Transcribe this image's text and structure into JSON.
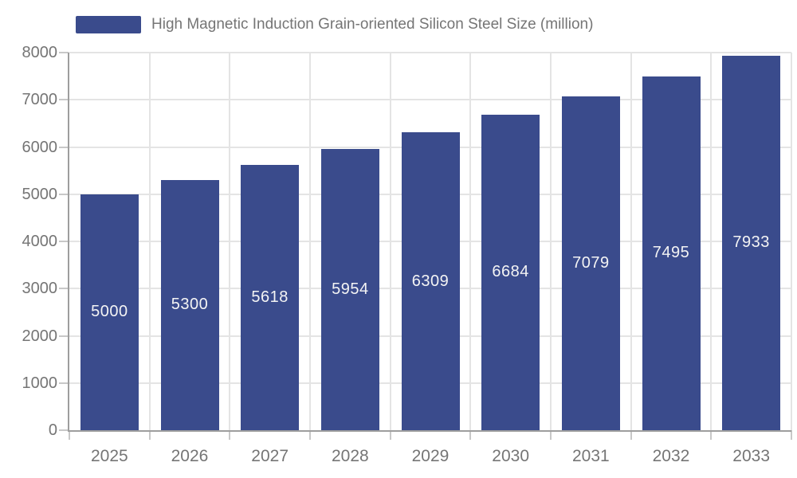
{
  "legend": {
    "label": "High Magnetic Induction Grain-oriented Silicon Steel Size (million)"
  },
  "chart_data": {
    "type": "bar",
    "title": "",
    "categories": [
      "2025",
      "2026",
      "2027",
      "2028",
      "2029",
      "2030",
      "2031",
      "2032",
      "2033"
    ],
    "series": [
      {
        "name": "High Magnetic Induction Grain-oriented Silicon Steel Size (million)",
        "values": [
          5000,
          5300,
          5618,
          5954,
          6309,
          6684,
          7079,
          7495,
          7933
        ],
        "color": "#3A4B8C"
      }
    ],
    "xlabel": "",
    "ylabel": "",
    "ylim": [
      0,
      8000
    ],
    "y_ticks": [
      0,
      1000,
      2000,
      3000,
      4000,
      5000,
      6000,
      7000,
      8000
    ],
    "grid": true,
    "vertical_category_gridlines": true,
    "legend_position": "top-left",
    "value_labels": {
      "visible": true,
      "position": "inside-center",
      "color": "#F4F4F4"
    }
  },
  "style": {
    "background_color": "#FFFFFF",
    "bar_color": "#3A4B8C",
    "grid_color": "#E4E4E4",
    "axis_color": "#9E9E9E",
    "tick_color": "#C8C8C8",
    "axis_label_color": "#757575",
    "value_label_color": "#F4F4F4"
  }
}
